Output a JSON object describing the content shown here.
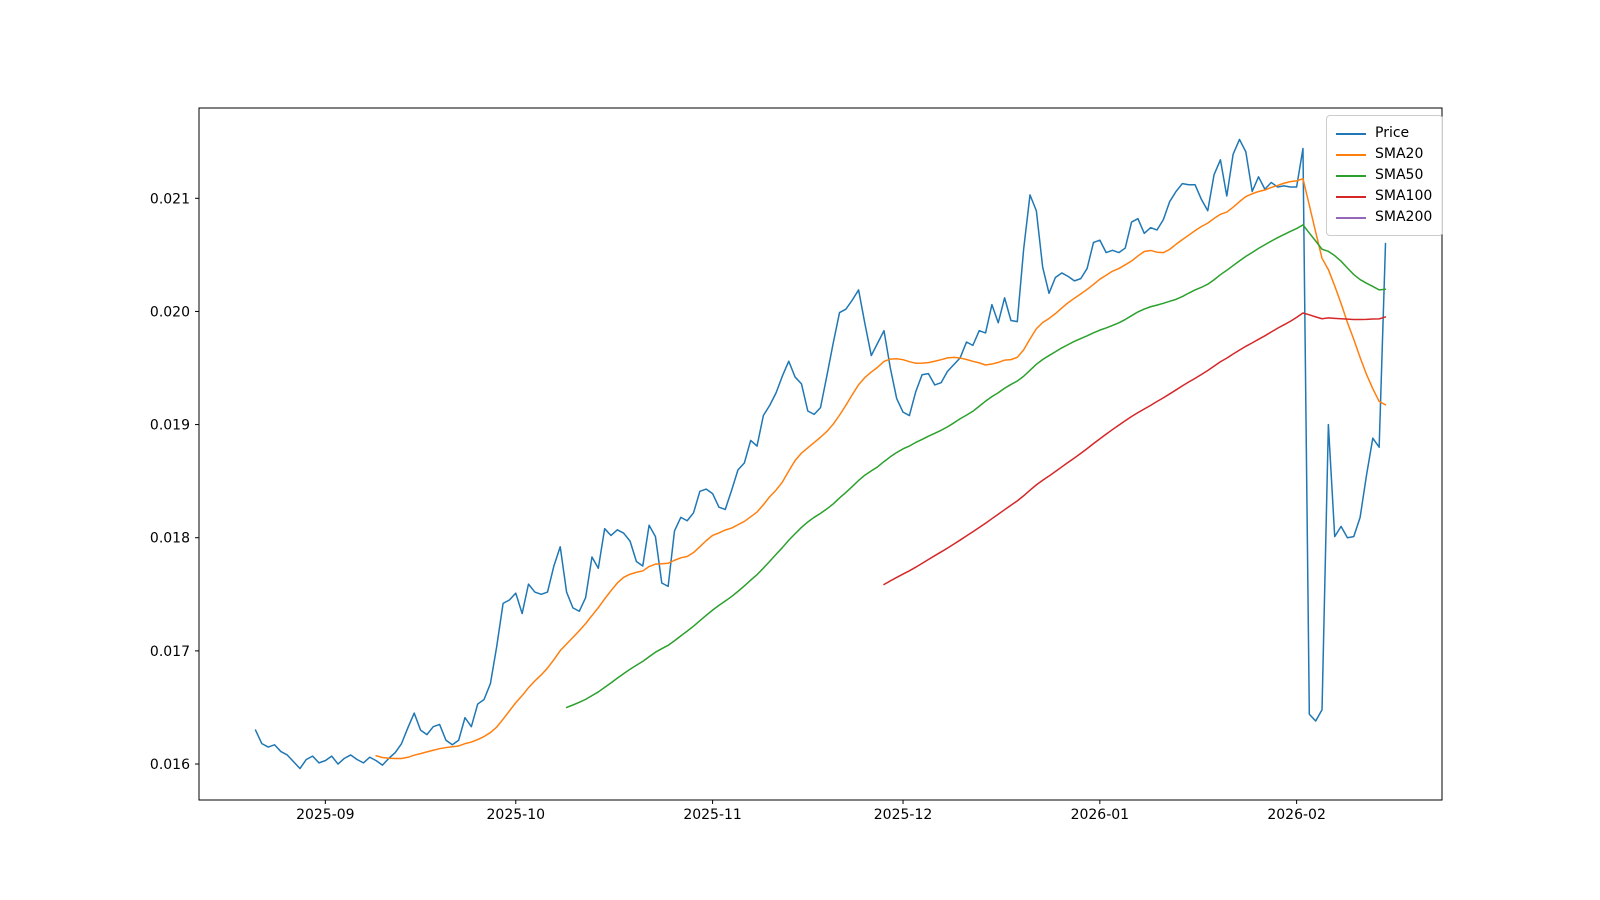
{
  "figure": {
    "background": "#ffffff",
    "frame_color": "#000000",
    "tick_label_color": "#000000"
  },
  "chart_data": {
    "type": "line",
    "title": "",
    "xlabel": "",
    "ylabel": "",
    "grid": false,
    "legend_position": "upper right",
    "x_frequency": "daily",
    "x_start_date": "2025-08-21",
    "x_tick_labels": [
      "2025-09",
      "2025-10",
      "2025-11",
      "2025-12",
      "2026-01",
      "2026-02"
    ],
    "x_ticks": [
      {
        "label": "2025-09",
        "day_index": 11
      },
      {
        "label": "2025-10",
        "day_index": 41
      },
      {
        "label": "2025-11",
        "day_index": 72
      },
      {
        "label": "2025-12",
        "day_index": 102
      },
      {
        "label": "2026-01",
        "day_index": 133
      },
      {
        "label": "2026-02",
        "day_index": 164
      }
    ],
    "y_ticks": [
      {
        "label": "0.016",
        "value": 0.016
      },
      {
        "label": "0.017",
        "value": 0.017
      },
      {
        "label": "0.018",
        "value": 0.018
      },
      {
        "label": "0.019",
        "value": 0.019
      },
      {
        "label": "0.020",
        "value": 0.02
      },
      {
        "label": "0.021",
        "value": 0.021
      }
    ],
    "ylim_note": "auto-scaled with 5% margins like matplotlib",
    "series": [
      {
        "name": "Price",
        "color": "#1f77b4",
        "kind": "raw"
      },
      {
        "name": "SMA20",
        "color": "#ff7f0e",
        "kind": "sma",
        "window": 20
      },
      {
        "name": "SMA50",
        "color": "#2ca02c",
        "kind": "sma",
        "window": 50
      },
      {
        "name": "SMA100",
        "color": "#d62728",
        "kind": "sma",
        "window": 100
      },
      {
        "name": "SMA200",
        "color": "#9467bd",
        "kind": "sma",
        "window": 200
      }
    ],
    "price_values": [
      0.0163,
      0.01618,
      0.01615,
      0.01617,
      0.01611,
      0.01608,
      0.01602,
      0.01596,
      0.01604,
      0.01607,
      0.01601,
      0.01603,
      0.01607,
      0.016,
      0.01605,
      0.01608,
      0.01604,
      0.01601,
      0.01606,
      0.01603,
      0.01599,
      0.01605,
      0.0161,
      0.01618,
      0.01632,
      0.01645,
      0.0163,
      0.01626,
      0.01633,
      0.01635,
      0.01621,
      0.01617,
      0.01621,
      0.01641,
      0.01633,
      0.01653,
      0.01657,
      0.01671,
      0.01704,
      0.01742,
      0.01745,
      0.01751,
      0.01733,
      0.01759,
      0.01752,
      0.0175,
      0.01752,
      0.01775,
      0.01792,
      0.01752,
      0.01738,
      0.01735,
      0.01747,
      0.01783,
      0.01773,
      0.01808,
      0.01802,
      0.01807,
      0.01804,
      0.01797,
      0.01779,
      0.01775,
      0.01811,
      0.01801,
      0.0176,
      0.01757,
      0.01806,
      0.01818,
      0.01815,
      0.01822,
      0.01841,
      0.01843,
      0.01839,
      0.01827,
      0.01825,
      0.01842,
      0.0186,
      0.01866,
      0.01886,
      0.01881,
      0.01908,
      0.01917,
      0.01928,
      0.01943,
      0.01956,
      0.01942,
      0.01936,
      0.01912,
      0.01909,
      0.01915,
      0.01943,
      0.01972,
      0.01999,
      0.02002,
      0.0201,
      0.02019,
      0.01989,
      0.01961,
      0.01972,
      0.01983,
      0.0195,
      0.01923,
      0.01911,
      0.01908,
      0.01929,
      0.01944,
      0.01945,
      0.01935,
      0.01937,
      0.01947,
      0.01953,
      0.01959,
      0.01973,
      0.0197,
      0.01983,
      0.01981,
      0.02006,
      0.0199,
      0.02012,
      0.01992,
      0.01991,
      0.02055,
      0.02103,
      0.02089,
      0.02039,
      0.02016,
      0.0203,
      0.02034,
      0.02031,
      0.02027,
      0.02029,
      0.02038,
      0.02061,
      0.02063,
      0.02052,
      0.02054,
      0.02052,
      0.02056,
      0.02079,
      0.02082,
      0.02069,
      0.02074,
      0.02072,
      0.02081,
      0.02097,
      0.02106,
      0.02113,
      0.02112,
      0.02112,
      0.02099,
      0.02089,
      0.02121,
      0.02134,
      0.02102,
      0.02139,
      0.02152,
      0.02141,
      0.02106,
      0.02119,
      0.02108,
      0.02114,
      0.0211,
      0.02111,
      0.0211,
      0.0211,
      0.02144,
      0.01644,
      0.01638,
      0.01648,
      0.019,
      0.01801,
      0.0181,
      0.018,
      0.01801,
      0.01818,
      0.01855,
      0.01888,
      0.0188,
      0.0206
    ]
  }
}
